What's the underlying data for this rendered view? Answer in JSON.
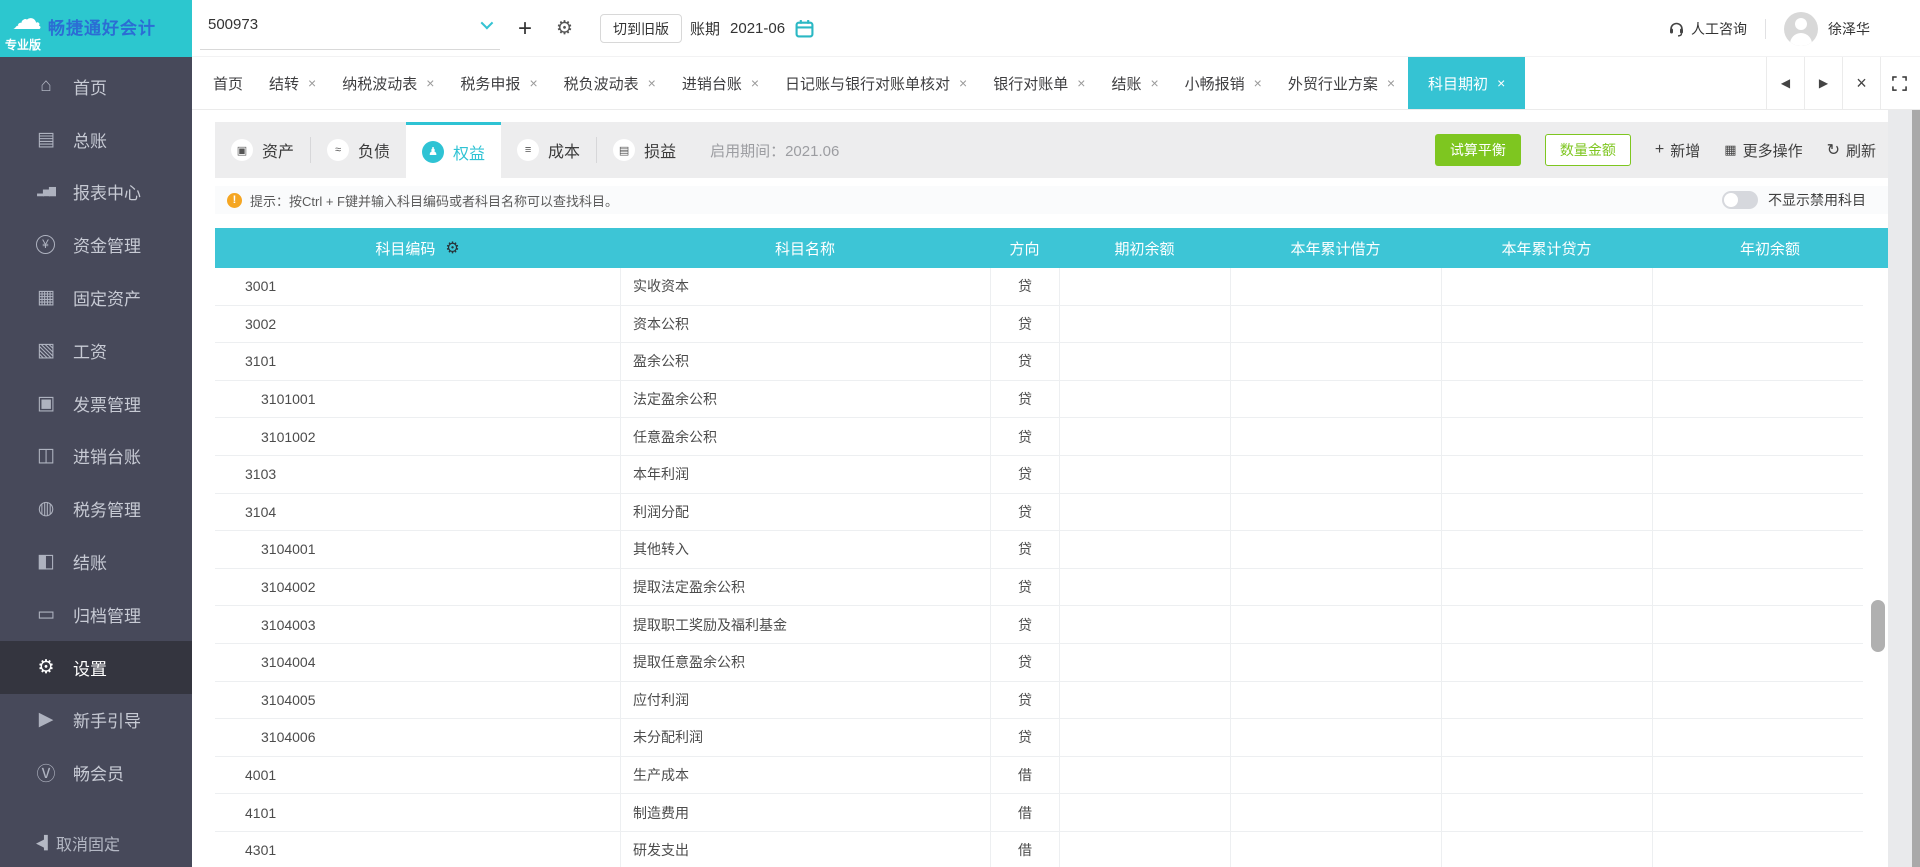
{
  "brand": {
    "title": "畅捷通好会计",
    "subtitle": "专业版"
  },
  "topbar": {
    "account_number": "500973",
    "add_tab_glyph": "+",
    "settings_glyph": "⚙",
    "switch_old_version": "切到旧版",
    "period_label": "账期",
    "period_value": "2021-06",
    "support_label": "人工咨询",
    "username": "徐泽华"
  },
  "sidebar": {
    "items": [
      {
        "name": "home",
        "icon": "home-icon",
        "glyph": "⌂",
        "label": "首页",
        "active": false
      },
      {
        "name": "general-ledger",
        "icon": "ledger-icon",
        "glyph": "▤",
        "label": "总账",
        "active": false
      },
      {
        "name": "report-center",
        "icon": "bar-chart-icon",
        "glyph": "▂▅▇",
        "label": "报表中心",
        "active": false
      },
      {
        "name": "funds",
        "icon": "money-bag-icon",
        "glyph": "¥",
        "circled": true,
        "label": "资金管理",
        "active": false
      },
      {
        "name": "fixed-assets",
        "icon": "building-icon",
        "glyph": "▦",
        "label": "固定资产",
        "active": false
      },
      {
        "name": "payroll",
        "icon": "payroll-icon",
        "glyph": "▧",
        "label": "工资",
        "active": false
      },
      {
        "name": "invoice",
        "icon": "invoice-icon",
        "glyph": "▣",
        "label": "发票管理",
        "active": false
      },
      {
        "name": "purchase-sales",
        "icon": "daybook-icon",
        "glyph": "◫",
        "label": "进销台账",
        "active": false
      },
      {
        "name": "tax",
        "icon": "tax-stamp-icon",
        "glyph": "◍",
        "label": "税务管理",
        "active": false
      },
      {
        "name": "closing",
        "icon": "close-books-icon",
        "glyph": "◧",
        "label": "结账",
        "active": false
      },
      {
        "name": "archive",
        "icon": "archive-box-icon",
        "glyph": "▭",
        "label": "归档管理",
        "active": false
      },
      {
        "name": "settings",
        "icon": "gear-icon",
        "glyph": "⚙",
        "label": "设置",
        "active": true
      },
      {
        "name": "beginner-guide",
        "icon": "play-icon",
        "glyph": "▶",
        "label": "新手引导",
        "active": false
      },
      {
        "name": "membership",
        "icon": "member-v-icon",
        "glyph": "Ⓥ",
        "label": "畅会员",
        "active": false
      }
    ],
    "unpin": {
      "glyph": "◀▍",
      "label": "取消固定"
    }
  },
  "tabs": {
    "close_glyph": "×",
    "items": [
      {
        "label": "首页",
        "closable": false,
        "active": false
      },
      {
        "label": "结转",
        "closable": true,
        "active": false
      },
      {
        "label": "纳税波动表",
        "closable": true,
        "active": false
      },
      {
        "label": "税务申报",
        "closable": true,
        "active": false
      },
      {
        "label": "税负波动表",
        "closable": true,
        "active": false
      },
      {
        "label": "进销台账",
        "closable": true,
        "active": false
      },
      {
        "label": "日记账与银行对账单核对",
        "closable": true,
        "active": false
      },
      {
        "label": "银行对账单",
        "closable": true,
        "active": false
      },
      {
        "label": "结账",
        "closable": true,
        "active": false
      },
      {
        "label": "小畅报销",
        "closable": true,
        "active": false
      },
      {
        "label": "外贸行业方案",
        "closable": true,
        "active": false
      },
      {
        "label": "科目期初",
        "closable": true,
        "active": true
      }
    ],
    "controls": {
      "prev": "◀",
      "next": "▶",
      "close_all": "×"
    }
  },
  "toolbar": {
    "subtabs": [
      {
        "label": "资产",
        "icon": "asset-safe-icon",
        "glyph": "▣",
        "active": false
      },
      {
        "label": "负债",
        "icon": "liability-icon",
        "glyph": "≈",
        "active": false
      },
      {
        "label": "权益",
        "icon": "equity-stamp-icon",
        "glyph": "♟",
        "active": true
      },
      {
        "label": "成本",
        "icon": "cost-layers-icon",
        "glyph": "≡",
        "active": false
      },
      {
        "label": "损益",
        "icon": "profit-loss-icon",
        "glyph": "▤",
        "active": false
      }
    ],
    "period_text": "启用期间：2021.06",
    "trial_balance": "试算平衡",
    "quantity_amount": "数量金额",
    "add_new": "新增",
    "add_glyph": "+",
    "more_actions": "更多操作",
    "more_glyph": "▦",
    "refresh": "刷新",
    "refresh_glyph": "↻"
  },
  "tipbar": {
    "icon_glyph": "!",
    "text": "提示：按Ctrl + F键并输入科目编码或者科目名称可以查找科目。",
    "toggle_label": "不显示禁用科目"
  },
  "table": {
    "columns": [
      "科目编码",
      "科目名称",
      "方向",
      "期初余额",
      "本年累计借方",
      "本年累计贷方",
      "年初余额"
    ],
    "header_gear_glyph": "⚙",
    "rows": [
      {
        "code": "3001",
        "name": "实收资本",
        "direction": "贷",
        "level": 1
      },
      {
        "code": "3002",
        "name": "资本公积",
        "direction": "贷",
        "level": 1
      },
      {
        "code": "3101",
        "name": "盈余公积",
        "direction": "贷",
        "level": 1
      },
      {
        "code": "3101001",
        "name": "法定盈余公积",
        "direction": "贷",
        "level": 2
      },
      {
        "code": "3101002",
        "name": "任意盈余公积",
        "direction": "贷",
        "level": 2
      },
      {
        "code": "3103",
        "name": "本年利润",
        "direction": "贷",
        "level": 1
      },
      {
        "code": "3104",
        "name": "利润分配",
        "direction": "贷",
        "level": 1
      },
      {
        "code": "3104001",
        "name": "其他转入",
        "direction": "贷",
        "level": 2
      },
      {
        "code": "3104002",
        "name": "提取法定盈余公积",
        "direction": "贷",
        "level": 2
      },
      {
        "code": "3104003",
        "name": "提取职工奖励及福利基金",
        "direction": "贷",
        "level": 2
      },
      {
        "code": "3104004",
        "name": "提取任意盈余公积",
        "direction": "贷",
        "level": 2
      },
      {
        "code": "3104005",
        "name": "应付利润",
        "direction": "贷",
        "level": 2
      },
      {
        "code": "3104006",
        "name": "未分配利润",
        "direction": "贷",
        "level": 2
      },
      {
        "code": "4001",
        "name": "生产成本",
        "direction": "借",
        "level": 1
      },
      {
        "code": "4101",
        "name": "制造费用",
        "direction": "借",
        "level": 1
      },
      {
        "code": "4301",
        "name": "研发支出",
        "direction": "借",
        "level": 1
      }
    ]
  },
  "colors": {
    "accent": "#35c3d3",
    "header_bg": "#3dc5d6",
    "green": "#7ec620",
    "sidebar_bg": "#47495a"
  }
}
